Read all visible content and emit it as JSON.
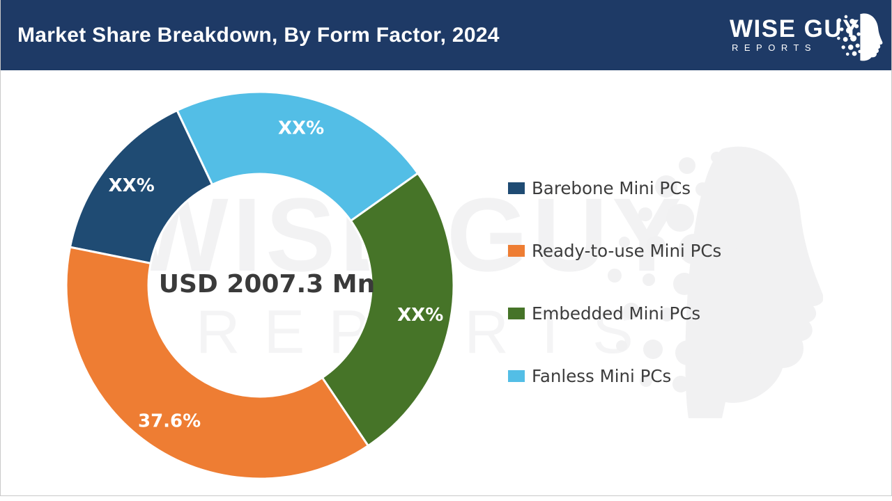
{
  "header": {
    "title": "Market Share Breakdown, By Form Factor, 2024",
    "logo": {
      "line1": "WISE GUY",
      "line2": "REPORTS"
    }
  },
  "watermark": {
    "line1": "WISE GUY",
    "line2": "REPORTS"
  },
  "chart_data": {
    "type": "pie",
    "donut": true,
    "title": "Market Share Breakdown, By Form Factor, 2024",
    "center_label": "USD 2007.3 Mn",
    "legend_position": "right",
    "start_angle_clockwise_from_top_deg": 281.4,
    "draw_order": [
      "Barebone Mini PCs",
      "Fanless Mini PCs",
      "Embedded Mini PCs",
      "Ready-to-use Mini PCs"
    ],
    "segments": [
      {
        "name": "Barebone Mini PCs",
        "color": "#1f4b73",
        "slice_label": "XX%",
        "value_pct_est": 14.8
      },
      {
        "name": "Ready-to-use Mini PCs",
        "color": "#ee7d33",
        "slice_label": "37.6%",
        "value_pct_est": 37.6
      },
      {
        "name": "Embedded Mini PCs",
        "color": "#467428",
        "slice_label": "XX%",
        "value_pct_est": 25.4
      },
      {
        "name": "Fanless Mini PCs",
        "color": "#53bee6",
        "slice_label": "XX%",
        "value_pct_est": 22.2
      }
    ]
  }
}
